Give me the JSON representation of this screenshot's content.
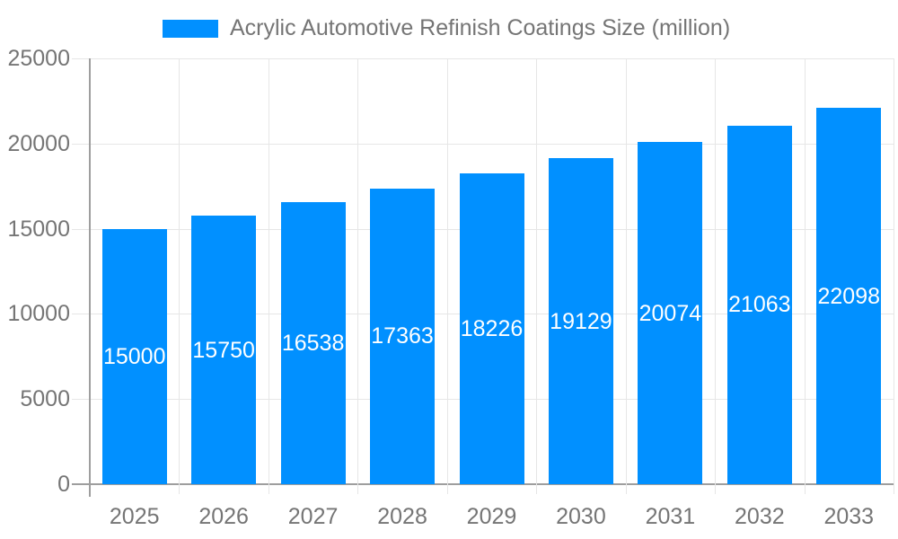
{
  "chart_data": {
    "type": "bar",
    "title": "",
    "xlabel": "",
    "ylabel": "",
    "categories": [
      "2025",
      "2026",
      "2027",
      "2028",
      "2029",
      "2030",
      "2031",
      "2032",
      "2033"
    ],
    "series": [
      {
        "name": "Acrylic Automotive Refinish Coatings Size (million)",
        "values": [
          15000,
          15750,
          16538,
          17363,
          18226,
          19129,
          20074,
          21063,
          22098
        ]
      }
    ],
    "bar_value_labels": [
      "15000",
      "15750",
      "16538",
      "17363",
      "18226",
      "19129",
      "20074",
      "21063",
      "22098"
    ],
    "ylim": [
      0,
      25000
    ],
    "yticks": [
      0,
      5000,
      10000,
      15000,
      20000,
      25000
    ],
    "ytick_labels": [
      "0",
      "5000",
      "10000",
      "15000",
      "20000",
      "25000"
    ],
    "grid": true,
    "legend_position": "top",
    "colors": {
      "bar": "#0190ff",
      "axis_text": "#757575",
      "gridline": "#e6e6e6",
      "axis_line": "#9e9e9e",
      "bar_label_text": "#ffffff",
      "background": "#ffffff"
    }
  }
}
